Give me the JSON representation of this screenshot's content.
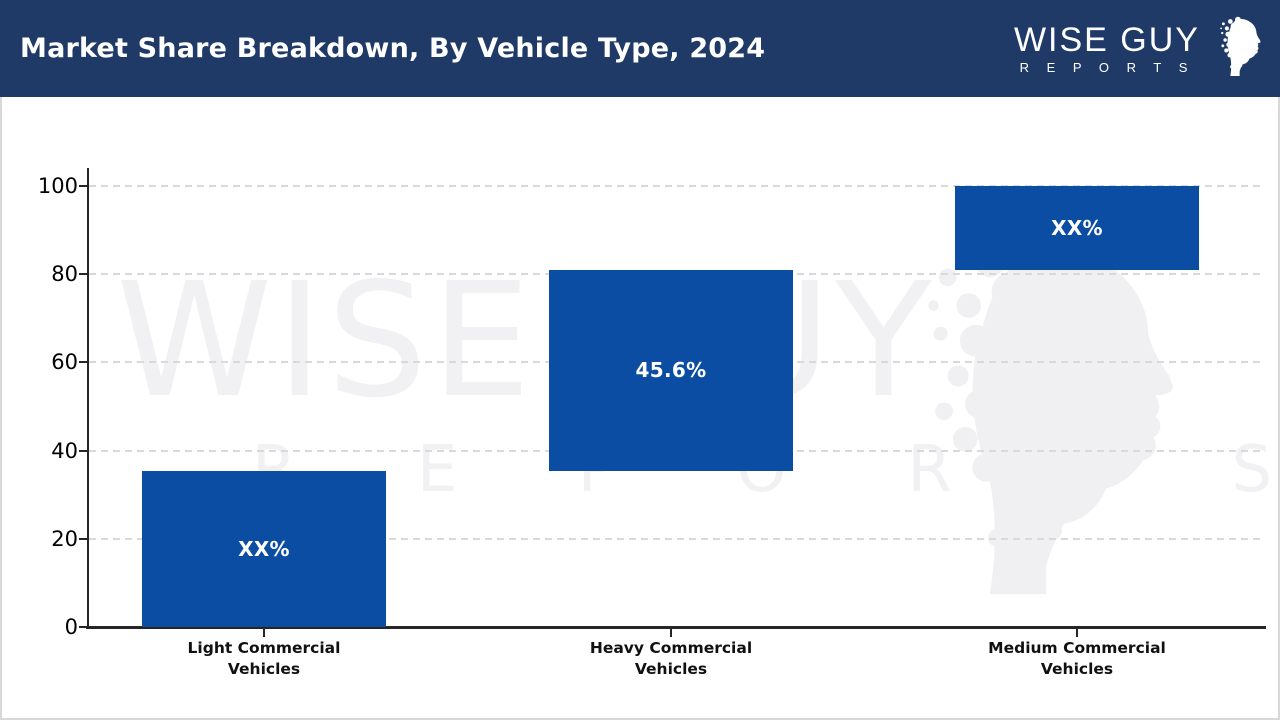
{
  "header": {
    "title": "Market Share Breakdown, By Vehicle Type, 2024",
    "logo": {
      "line1": "WISE GUY",
      "line2": "R E P O R T S"
    }
  },
  "watermark": {
    "line1": "WISE GUY",
    "line2": "R E P O R T S"
  },
  "colors": {
    "header_bg": "#203A67",
    "bar": "#0B4DA2",
    "bar_label": "#ffffff",
    "grid": "#d9d9d9",
    "axis": "#262626",
    "watermark": "#f1f1f3",
    "edge": "#d8d8d8"
  },
  "chart_data": {
    "type": "bar",
    "subtype": "floating-stacked-waterfall",
    "title": "Market Share Breakdown, By Vehicle Type, 2024",
    "categories": [
      "Light Commercial Vehicles",
      "Heavy Commercial Vehicles",
      "Medium Commercial Vehicles"
    ],
    "bars": [
      {
        "category": "Light Commercial Vehicles",
        "start": 0,
        "end": 35.4,
        "value": 35.4,
        "label": "XX%"
      },
      {
        "category": "Heavy Commercial Vehicles",
        "start": 35.4,
        "end": 81.0,
        "value": 45.6,
        "label": "45.6%"
      },
      {
        "category": "Medium Commercial Vehicles",
        "start": 81.0,
        "end": 100.0,
        "value": 19.0,
        "label": "XX%"
      }
    ],
    "xlabel": "",
    "ylabel": "",
    "ylim": [
      0,
      100
    ],
    "yticks": [
      0,
      20,
      40,
      60,
      80,
      100
    ],
    "grid": "horizontal dashed",
    "legend": "none"
  }
}
